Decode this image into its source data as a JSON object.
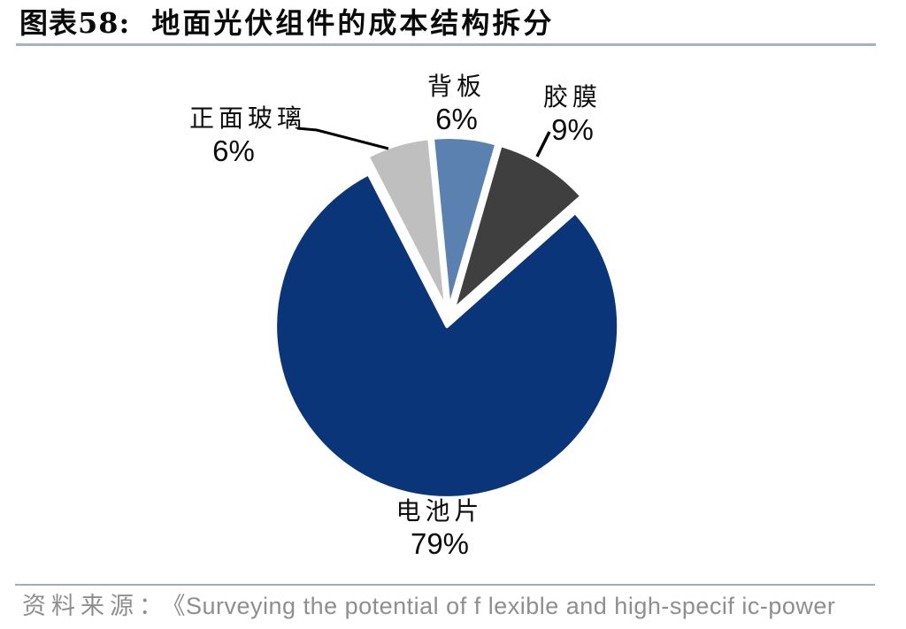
{
  "header": {
    "title_prefix": "图表58:",
    "title_text": "地面光伏组件的成本结构拆分"
  },
  "chart_data": {
    "type": "pie",
    "title": "地面光伏组件的成本结构拆分",
    "categories": [
      "正面玻璃",
      "背板",
      "胶膜",
      "电池片"
    ],
    "values": [
      6,
      6,
      9,
      79
    ],
    "unit": "%",
    "colors": [
      "#bfbfbf",
      "#5b81b0",
      "#3f3f3f",
      "#0a3578"
    ],
    "labels": [
      {
        "name": "正面玻璃",
        "pct": "6%"
      },
      {
        "name": "背板",
        "pct": "6%"
      },
      {
        "name": "胶膜",
        "pct": "9%"
      },
      {
        "name": "电池片",
        "pct": "79%"
      }
    ],
    "start_angle_deg": -27.2,
    "direction": "clockwise",
    "explode": true,
    "slice_border_color": "#ffffff",
    "legend": "none"
  },
  "footer": {
    "source_label": "资料来源：",
    "source_text": "《Surveying the potential of f lexible and high-specif ic-power"
  }
}
